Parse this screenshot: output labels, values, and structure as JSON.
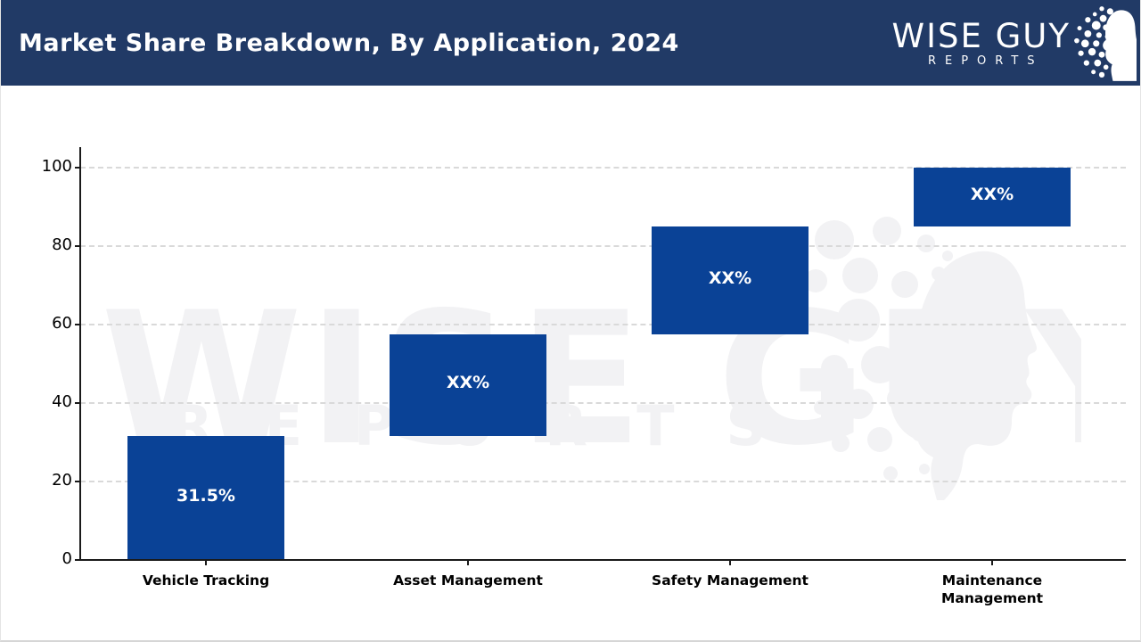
{
  "header": {
    "title": "Market Share Breakdown, By Application, 2024",
    "logo": {
      "line1": "WISE GUY",
      "line2": "REPORTS"
    }
  },
  "watermark": {
    "line1": "WISE GUY",
    "line2": "REPORTS"
  },
  "chart_data": {
    "type": "bar",
    "subtype": "waterfall",
    "title": "Market Share Breakdown, By Application, 2024",
    "categories": [
      "Vehicle Tracking",
      "Asset Management",
      "Safety Management",
      "Maintenance Management"
    ],
    "segments": [
      {
        "category": "Vehicle Tracking",
        "start": 0,
        "end": 31.5,
        "label": "31.5%"
      },
      {
        "category": "Asset Management",
        "start": 31.5,
        "end": 57.5,
        "label": "XX%"
      },
      {
        "category": "Safety Management",
        "start": 57.5,
        "end": 85,
        "label": "XX%"
      },
      {
        "category": "Maintenance Management",
        "start": 85,
        "end": 100,
        "label": "XX%"
      }
    ],
    "ylim": [
      0,
      105
    ],
    "yticks": [
      0,
      20,
      40,
      60,
      80,
      100
    ],
    "xlabel": "",
    "ylabel": "",
    "legend": "none",
    "grid": "horizontal-dashed",
    "bar_color": "#0a4296",
    "bar_label_color": "#ffffff",
    "axis_color": "#1a1a1a",
    "gridline_color": "#d9d9d9",
    "tick_label_color": "#000000"
  },
  "colors": {
    "header_bg": "#213a66",
    "header_text": "#ffffff",
    "watermark": "#f2f2f4"
  }
}
